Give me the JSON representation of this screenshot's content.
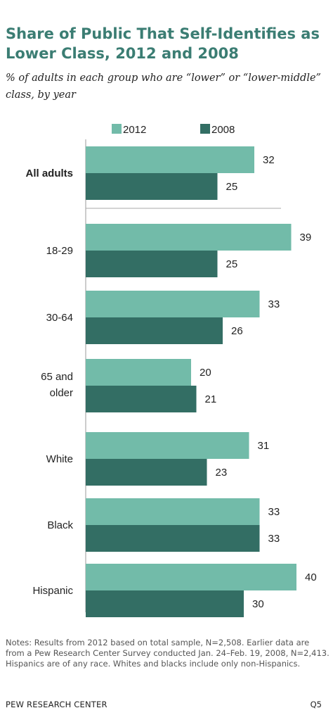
{
  "title": "Share of Public That Self-Identifies as Lower Class, 2012 and 2008",
  "subtitle": "% of adults in each group who are “lower” or “lower-middle” class, by year",
  "notes": "Notes: Results from 2012 based on total sample, N=2,508. Earlier data are from a Pew Research Center Survey conducted Jan. 24–Feb. 19, 2008, N=2,413. Hispanics are of any race. Whites and blacks include only non-Hispanics.",
  "footer": {
    "source": "PEW RESEARCH CENTER",
    "code": "Q5"
  },
  "colors": {
    "2012": "#72bba9",
    "2008": "#336e64",
    "title": "#3b7d73",
    "axis": "#999999"
  },
  "chart_data": {
    "type": "bar",
    "orientation": "horizontal",
    "categories": [
      "All adults",
      "18-29",
      "30-64",
      "65 and older",
      "White",
      "Black",
      "Hispanic"
    ],
    "series": [
      {
        "name": "2012",
        "values": [
          32,
          39,
          33,
          20,
          31,
          33,
          40
        ]
      },
      {
        "name": "2008",
        "values": [
          25,
          25,
          26,
          21,
          23,
          33,
          30
        ]
      }
    ],
    "xlim": [
      0,
      40
    ],
    "legend": "top",
    "grid": false,
    "data_labels": true
  }
}
